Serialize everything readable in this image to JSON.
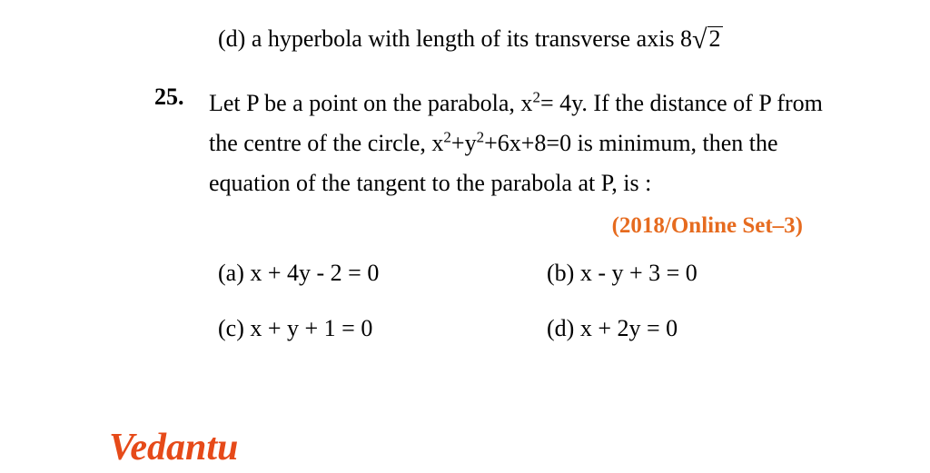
{
  "prevOption": {
    "label": "(d)",
    "text_before": " a hyperbola with length of its transverse axis ",
    "coeff": "8",
    "sqrt_arg": "2"
  },
  "question": {
    "number": "25.",
    "text_l1_a": "Let P be a point on the parabola, x",
    "sup1": "2",
    "text_l1_b": "= 4y. If the distance of",
    "text_l2_a": "P from the centre of the circle, x",
    "sup2": "2",
    "text_l2_b": "+y",
    "sup3": "2",
    "text_l2_c": "+6x+8=0 is minimum,",
    "text_l3": "then the equation of the tangent to the parabola at P, is :"
  },
  "yearSet": "(2018/Online Set–3)",
  "options": {
    "a": "(a) x + 4y - 2 = 0",
    "b": "(b) x - y + 3 = 0",
    "c": "(c) x + y + 1 = 0",
    "d": "(d) x + 2y = 0"
  },
  "brand": "Vedantu",
  "colors": {
    "text": "#000000",
    "accent": "#e66b1f",
    "brand": "#e64a19",
    "background": "#ffffff"
  }
}
